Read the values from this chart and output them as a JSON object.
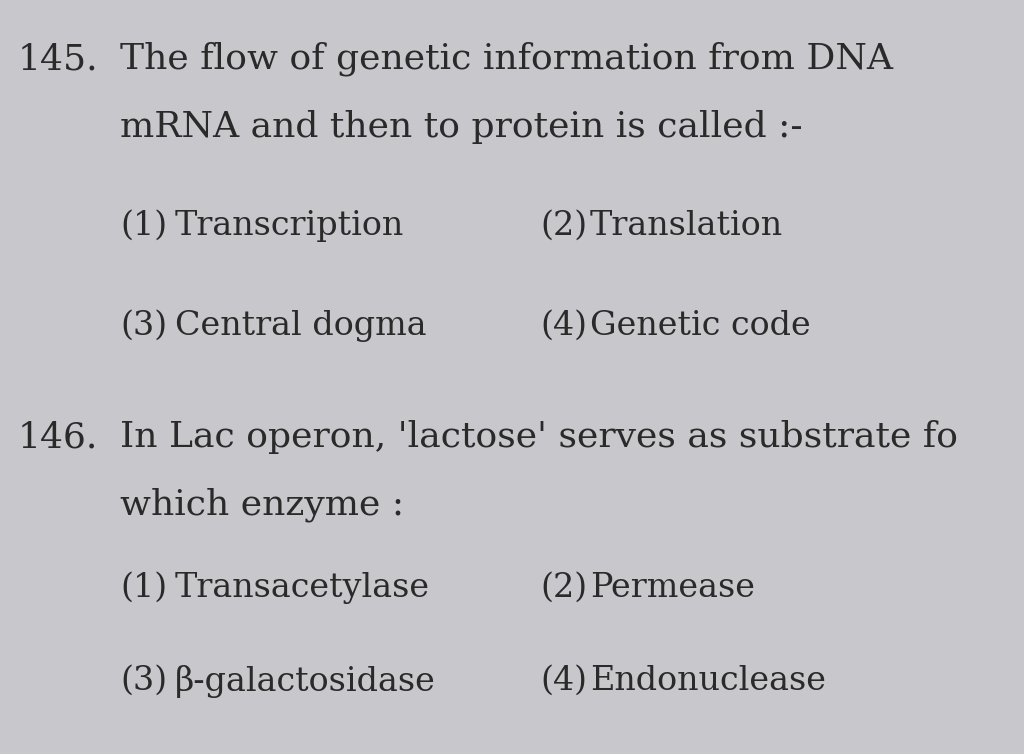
{
  "background_color": "#c8c8cc",
  "text_color": "#2a2a2a",
  "q145_number": "145.",
  "q145_line1": "The flow of genetic information from DNA",
  "q145_line2": "mRNA and then to protein is called :-",
  "q145_opt1_num": "(1)",
  "q145_opt1_text": "Transcription",
  "q145_opt2_num": "(2)",
  "q145_opt2_text": "Translation",
  "q145_opt3_num": "(3)",
  "q145_opt3_text": "Central dogma",
  "q145_opt4_num": "(4)",
  "q145_opt4_text": "Genetic code",
  "q146_number": "146.",
  "q146_line1": "In Lac operon, 'lactose' serves as substrate fo",
  "q146_line2": "which enzyme :",
  "q146_opt1_num": "(1)",
  "q146_opt1_text": "Transacetylase",
  "q146_opt2_num": "(2)",
  "q146_opt2_text": "Permease",
  "q146_opt3_num": "(3)",
  "q146_opt3_text": "β-galactosidase",
  "q146_opt4_num": "(4)",
  "q146_opt4_text": "Endonuclease",
  "fontsize_question": 26,
  "fontsize_option": 24,
  "font_family": "DejaVu Serif",
  "fig_width": 10.24,
  "fig_height": 7.54,
  "dpi": 100
}
